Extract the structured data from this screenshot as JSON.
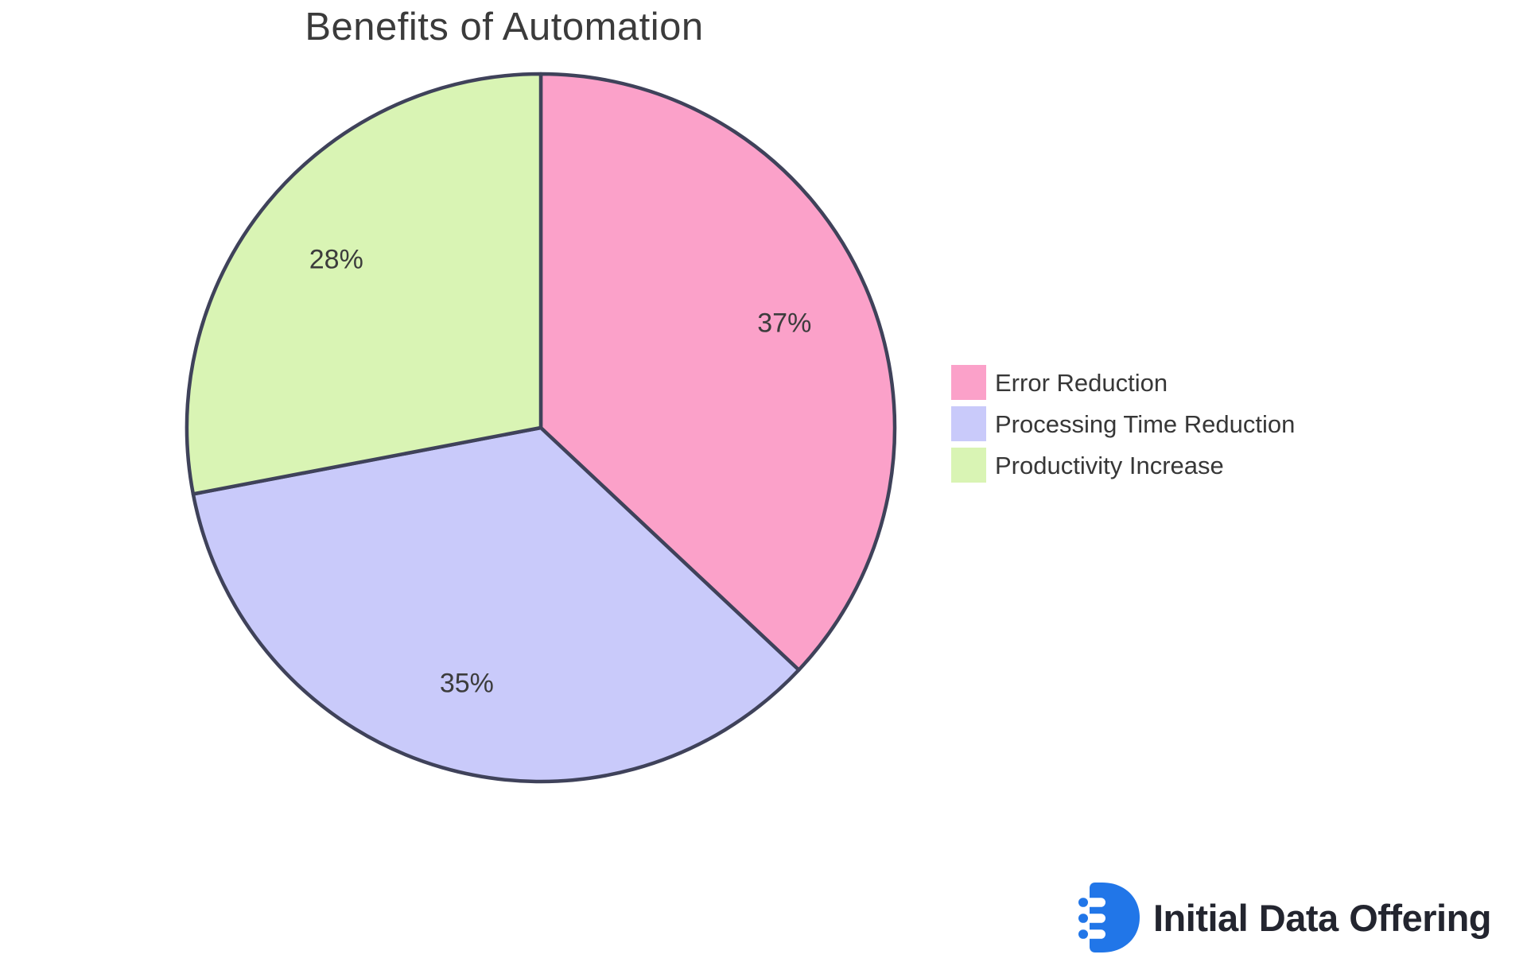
{
  "chart_data": {
    "type": "pie",
    "title": "Benefits of Automation",
    "categories": [
      "Error Reduction",
      "Processing Time Reduction",
      "Productivity Increase"
    ],
    "values": [
      37,
      35,
      28
    ],
    "percent_labels": [
      "37%",
      "35%",
      "28%"
    ],
    "colors": [
      "#FBA1C9",
      "#C9CAFA",
      "#D9F4B4"
    ],
    "start_angle_deg": 90,
    "direction": "clockwise",
    "legend_position": "right",
    "edge_color": "#3F425A"
  },
  "branding": {
    "text": "Initial Data Offering",
    "logo_icon": "blue-d-database-icon"
  },
  "theme": {
    "background": "#FFFFFF",
    "title_color": "#3B3B3B",
    "label_color": "#3C3C3C",
    "legend_text_color": "#373737",
    "slice_stroke": "#3F425A",
    "logo_blue": "#2176E8",
    "logo_text_color": "#23252F"
  }
}
